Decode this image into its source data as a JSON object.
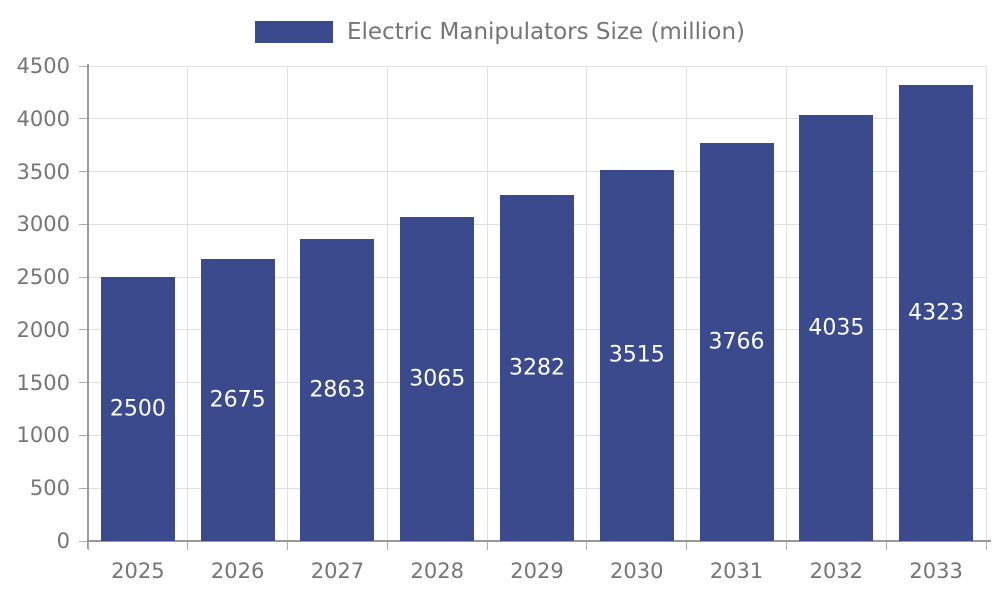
{
  "legend": {
    "label": "Electric Manipulators Size (million)"
  },
  "chart_data": {
    "type": "bar",
    "series": [
      {
        "name": "Electric Manipulators Size (million)",
        "values": [
          2500,
          2675,
          2863,
          3065,
          3282,
          3515,
          3766,
          4035,
          4323
        ]
      }
    ],
    "categories": [
      "2025",
      "2026",
      "2027",
      "2028",
      "2029",
      "2030",
      "2031",
      "2032",
      "2033"
    ],
    "value_labels_position": "inside-center",
    "xlabel": "",
    "ylabel": "",
    "ylim": [
      0,
      4500
    ],
    "yticks": [
      0,
      500,
      1000,
      1500,
      2000,
      2500,
      3000,
      3500,
      4000,
      4500
    ],
    "grid": "both",
    "legend_position": "top-center",
    "colors": {
      "bar": "#3A4A8C",
      "value_label": "#FFFFFF",
      "grid_line": "#E0E0E0",
      "axis_line": "#999999",
      "tick": "#ADADAD",
      "axis_label": "#757575",
      "legend_text": "#757575",
      "background": "#FFFFFF"
    }
  }
}
